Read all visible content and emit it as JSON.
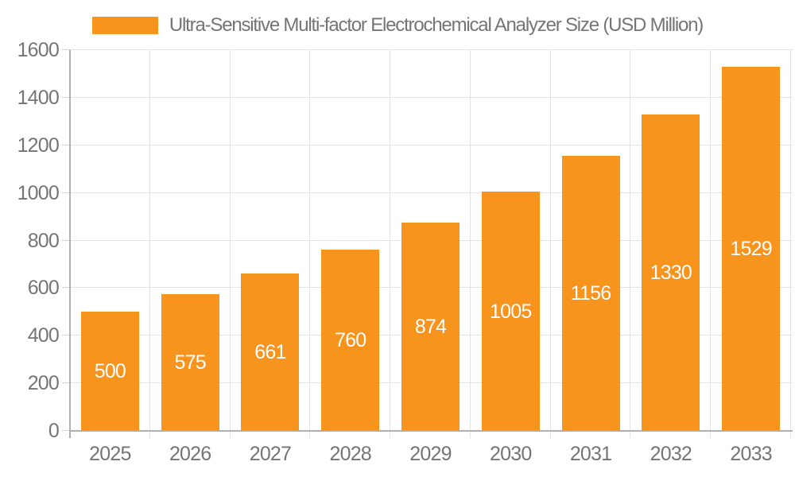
{
  "colors": {
    "background": "#FFFFFF",
    "bar": "#F7941E",
    "grid_line": "#E3E3E3",
    "tick_line": "#D5D5D5",
    "axis_line": "#B0B0B0",
    "text": "#757575",
    "bar_label": "#FFFFFF"
  },
  "legend": {
    "swatch_icon": "orange-series-swatch",
    "label": "Ultra-Sensitive Multi-factor Electrochemical Analyzer Size (USD Million)"
  },
  "chart_data": {
    "type": "bar",
    "title": "Ultra-Sensitive Multi-factor Electrochemical Analyzer Size (USD Million)",
    "categories": [
      "2025",
      "2026",
      "2027",
      "2028",
      "2029",
      "2030",
      "2031",
      "2032",
      "2033"
    ],
    "series": [
      {
        "name": "Ultra-Sensitive Multi-factor Electrochemical Analyzer Size (USD Million)",
        "values": [
          500,
          575,
          661,
          760,
          874,
          1005,
          1156,
          1330,
          1529
        ]
      }
    ],
    "values": [
      500,
      575,
      661,
      760,
      874,
      1005,
      1156,
      1330,
      1529
    ],
    "value_labels": "inside-middle",
    "xlabel": "",
    "ylabel": "",
    "ylim": [
      0,
      1600
    ],
    "yticks": [
      0,
      200,
      400,
      600,
      800,
      1000,
      1200,
      1400,
      1600
    ],
    "grid": true,
    "legend_position": "top-center"
  }
}
